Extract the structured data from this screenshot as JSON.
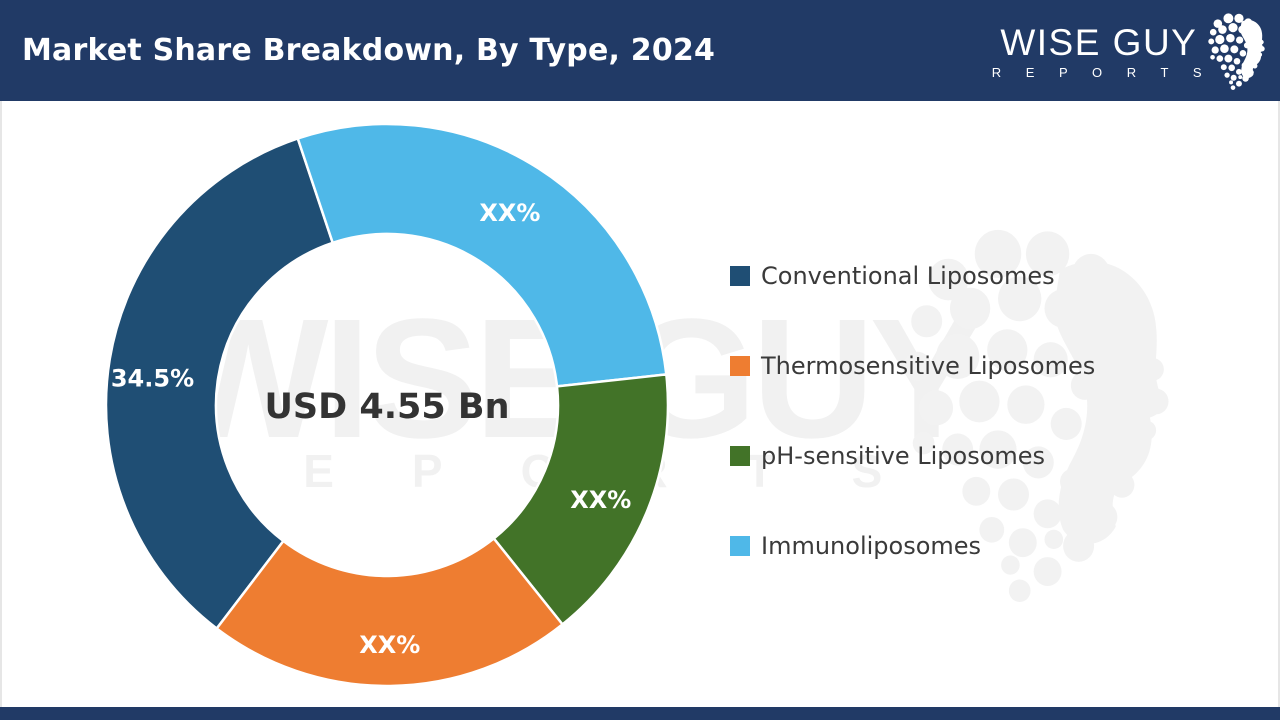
{
  "header": {
    "title": "Market Share Breakdown, By Type, 2024",
    "logo": {
      "line1": "WISE GUY",
      "line2": "R E P O R T S"
    }
  },
  "watermark": {
    "line1": "WISE GUY",
    "line2": "REPORTS"
  },
  "chart_data": {
    "type": "pie",
    "subtype": "donut",
    "title": "Market Share Breakdown, By Type, 2024",
    "center_label": "USD 4.55 Bn",
    "unit": "% market share",
    "series": [
      {
        "key": "conventional-liposomes",
        "name": "Conventional Liposomes",
        "value": 34.5,
        "display_label": "34.5%",
        "color": "#1F4E74"
      },
      {
        "key": "thermosensitive-liposomes",
        "name": "Thermosensitive Liposomes",
        "value": 21.1,
        "display_label": "XX%",
        "color": "#EE7D31"
      },
      {
        "key": "ph-sensitive-liposomes",
        "name": "pH-sensitive Liposomes",
        "value": 16.0,
        "display_label": "XX%",
        "color": "#427328"
      },
      {
        "key": "immunoliposomes",
        "name": "Immunoliposomes",
        "value": 28.4,
        "display_label": "XX%",
        "color": "#4FB8E8"
      }
    ],
    "values_note": "Only the 34.5% slice is labeled numerically on screen; other slices display XX% and their values are estimated from arc angles.",
    "layout": {
      "legend_position": "right",
      "donut_hole_ratio": 0.61,
      "start_angle_deg": 217.3,
      "plot_order": [
        0,
        3,
        2,
        1
      ],
      "label_radius": 228,
      "label_overrides": {
        "conventional-liposomes": {
          "angle": 276.5,
          "r": 236
        },
        "thermosensitive-liposomes": {
          "r": 240
        },
        "ph-sensitive-liposomes": {
          "angle": 114,
          "r": 234
        }
      }
    }
  },
  "colors": {
    "header_bar": "#213A66",
    "footer_bar": "#213A66",
    "background": "#FFFFFF",
    "watermark": "#F1F1F1",
    "center_text": "#333333",
    "legend_text": "#3A3A3A",
    "slice_label_text": "#FFFFFF"
  }
}
